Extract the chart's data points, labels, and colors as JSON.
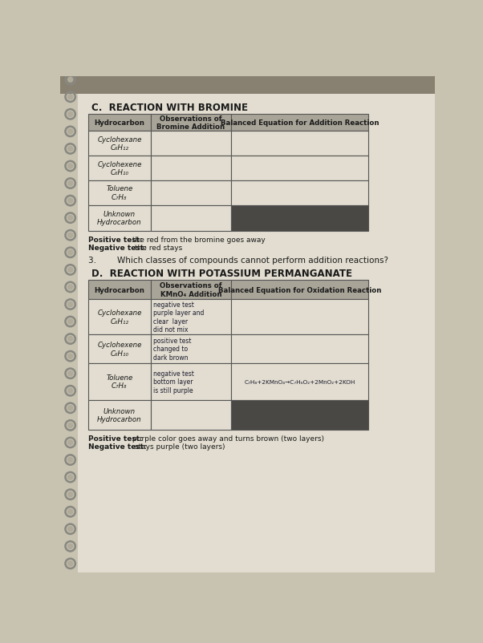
{
  "bg_color": "#c8c2b0",
  "page_bg": "#e2ddd0",
  "title_c": "C.  REACTION WITH BROMINE",
  "title_d": "D.  REACTION WITH POTASSIUM PERMANGANATE",
  "section_c": {
    "headers": [
      "Hydrocarbon",
      "Observations of\nBromine Addition",
      "Balanced Equation for Addition Reaction"
    ],
    "rows": [
      [
        "Cyclohexane\nC₆H₁₂",
        "",
        ""
      ],
      [
        "Cyclohexene\nC₆H₁₀",
        "",
        ""
      ],
      [
        "Toluene\nC₇H₈",
        "",
        ""
      ],
      [
        "Unknown\nHydrocarbon",
        "",
        "DARK"
      ]
    ]
  },
  "section_d": {
    "headers": [
      "Hydrocarbon",
      "Observations of\nKMnO₄ Addition",
      "Balanced Equation for Oxidation Reaction"
    ],
    "rows": [
      [
        "Cyclohexane\nC₆H₁₂",
        "negative test\npurple layer and\nclear  layer\ndid not mix",
        ""
      ],
      [
        "Cyclohexene\nC₆H₁₀",
        "positive test\nchanged to\ndark brown",
        ""
      ],
      [
        "Toluene\nC₇H₈",
        "negative test\nbottom layer\nis still purple",
        "C₇H₈+2KMnO₄→C₇H₆O₂+2MnO₂+2KOH"
      ],
      [
        "Unknown\nHydrocarbon",
        "",
        "DARK"
      ]
    ]
  },
  "positive_c": " the red from the bromine goes away",
  "negative_c": " the red stays",
  "question3": "3.        Which classes of compounds cannot perform addition reactions?",
  "positive_d": " purple color goes away and turns brown (two layers)",
  "negative_d": " stays purple (two layers)",
  "header_bg": "#a8a498",
  "dark_cell_bg": "#4a4845",
  "cell_bg": "#e2ddd0",
  "line_color": "#555555",
  "text_color": "#1a1a1a",
  "handwriting_color": "#1a1a2e",
  "spiral_color": "#888880"
}
